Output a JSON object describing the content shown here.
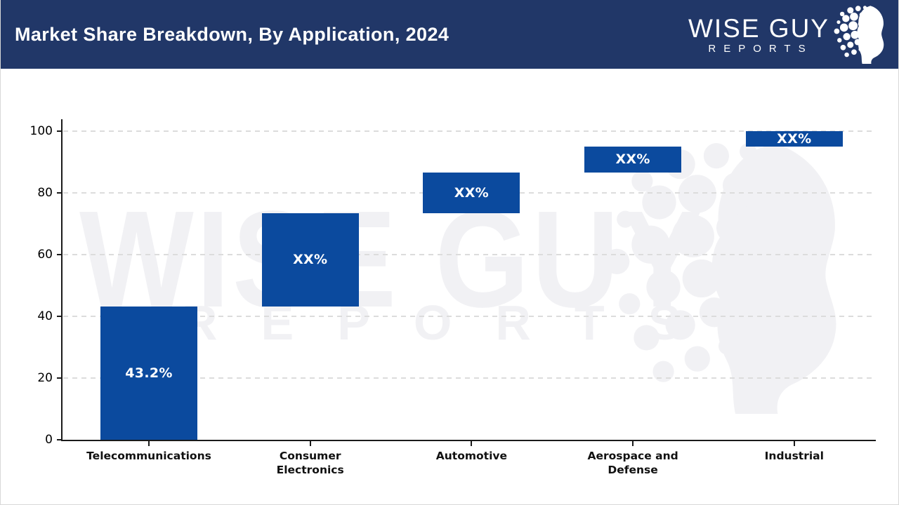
{
  "header": {
    "title": "Market Share Breakdown, By Application, 2024",
    "background_color": "#213768",
    "logo": {
      "line1": "WISE GUY",
      "line2": "REPORTS",
      "icon": "dotted-head-profile-icon",
      "color": "#ffffff"
    }
  },
  "watermark": {
    "line1": "WISE GUY",
    "line2": "REPORTS",
    "icon": "dotted-head-profile-icon",
    "color": "#f1f1f4"
  },
  "chart_data": {
    "type": "bar",
    "subtype": "waterfall",
    "title": "Market Share Breakdown, By Application, 2024",
    "xlabel": "",
    "ylabel": "",
    "ylim": [
      0,
      104
    ],
    "yticks": [
      0,
      20,
      40,
      60,
      80,
      100
    ],
    "grid": "horizontal-dashed",
    "bar_color": "#0b4a9e",
    "value_label_color": "#ffffff",
    "categories": [
      "Telecommunications",
      "Consumer Electronics",
      "Automotive",
      "Aerospace and Defense",
      "Industrial"
    ],
    "category_label_lines": [
      [
        "Telecommunications"
      ],
      [
        "Consumer",
        "Electronics"
      ],
      [
        "Automotive"
      ],
      [
        "Aerospace and",
        "Defense"
      ],
      [
        "Industrial"
      ]
    ],
    "segments": [
      {
        "category": "Telecommunications",
        "start": 0,
        "end": 43.2,
        "value": 43.2,
        "label": "43.2%"
      },
      {
        "category": "Consumer Electronics",
        "start": 43.2,
        "end": 73.5,
        "value": 30.3,
        "label": "XX%"
      },
      {
        "category": "Automotive",
        "start": 73.5,
        "end": 86.6,
        "value": 13.1,
        "label": "XX%"
      },
      {
        "category": "Aerospace and Defense",
        "start": 86.6,
        "end": 95.0,
        "value": 8.4,
        "label": "XX%"
      },
      {
        "category": "Industrial",
        "start": 95.0,
        "end": 100.0,
        "value": 5.0,
        "label": "XX%"
      }
    ]
  }
}
